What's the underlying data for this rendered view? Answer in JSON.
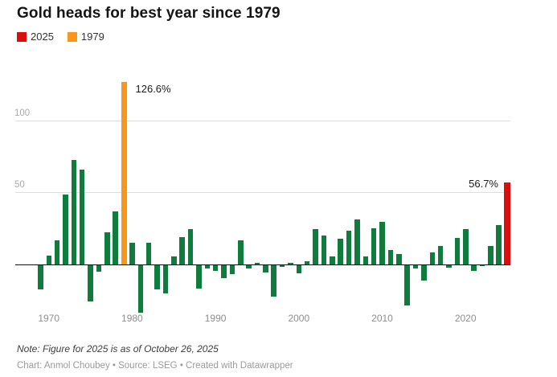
{
  "header": {
    "title": "Gold heads for best year since 1979"
  },
  "legend": {
    "items": [
      {
        "label": "2025",
        "color": "#DC0D0D"
      },
      {
        "label": "1979",
        "color": "#F8951D"
      }
    ]
  },
  "footer": {
    "note": "Note: Figure for 2025 is as of October 26, 2025",
    "credit": "Chart: Anmol Choubey • Source: LSEG • Created with Datawrapper"
  },
  "chart_data": {
    "type": "bar",
    "title": "Gold heads for best year since 1979",
    "xlabel": "",
    "ylabel": "",
    "unit": "%",
    "x": [
      1969,
      1970,
      1971,
      1972,
      1973,
      1974,
      1975,
      1976,
      1977,
      1978,
      1979,
      1980,
      1981,
      1982,
      1983,
      1984,
      1985,
      1986,
      1987,
      1988,
      1989,
      1990,
      1991,
      1992,
      1993,
      1994,
      1995,
      1996,
      1997,
      1998,
      1999,
      2000,
      2001,
      2002,
      2003,
      2004,
      2005,
      2006,
      2007,
      2008,
      2009,
      2010,
      2011,
      2012,
      2013,
      2014,
      2015,
      2016,
      2017,
      2018,
      2019,
      2020,
      2021,
      2022,
      2023,
      2024,
      2025
    ],
    "values": [
      -16.3,
      6.0,
      16.5,
      48.8,
      72.6,
      66.0,
      -24.8,
      -4.1,
      22.6,
      37.0,
      126.6,
      15.2,
      -32.6,
      14.9,
      -16.3,
      -19.2,
      5.8,
      19.0,
      24.5,
      -15.7,
      -2.2,
      -3.7,
      -8.6,
      -5.7,
      17.0,
      -2.2,
      1.0,
      -4.6,
      -21.4,
      -0.8,
      0.9,
      -5.4,
      2.5,
      24.8,
      19.9,
      5.6,
      17.8,
      23.2,
      31.4,
      5.5,
      25.0,
      29.5,
      10.1,
      7.0,
      -27.8,
      -2.2,
      -10.4,
      8.5,
      13.1,
      -1.6,
      18.3,
      24.8,
      -3.6,
      -0.3,
      13.1,
      27.2,
      56.7
    ],
    "default_color": "#0F7B3D",
    "highlights": {
      "1979": {
        "color": "#F8951D",
        "width": 7
      },
      "2025": {
        "color": "#DC0D0D",
        "width": 8
      }
    },
    "annotations": [
      {
        "year": 1979,
        "text": "126.6%",
        "side": "right"
      },
      {
        "year": 2025,
        "text": "56.7%",
        "side": "left"
      }
    ],
    "yticks": [
      50,
      100
    ],
    "xticks": [
      1970,
      1980,
      1990,
      2000,
      2010,
      2020
    ],
    "ylim": [
      -40,
      135
    ],
    "grid": "horizontal-y",
    "legend_position": "top-left"
  }
}
